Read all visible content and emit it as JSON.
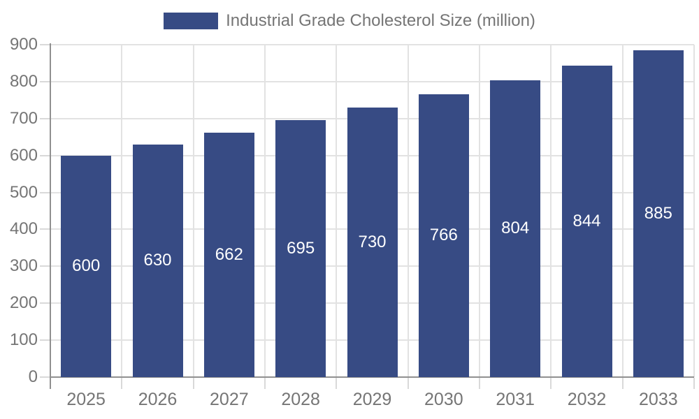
{
  "chart_data": {
    "type": "bar",
    "title": "",
    "categories": [
      "2025",
      "2026",
      "2027",
      "2028",
      "2029",
      "2030",
      "2031",
      "2032",
      "2033"
    ],
    "series": [
      {
        "name": "Industrial Grade Cholesterol Size (million)",
        "values": [
          600,
          630,
          662,
          695,
          730,
          766,
          804,
          844,
          885
        ]
      }
    ],
    "value_labels": [
      600,
      630,
      662,
      695,
      730,
      766,
      804,
      844,
      885
    ],
    "y_tick_labels": [
      "0",
      "100",
      "200",
      "300",
      "400",
      "500",
      "600",
      "700",
      "800",
      "900"
    ],
    "xlabel": "",
    "ylabel": "",
    "ylim": [
      0,
      900
    ],
    "ytick_step": 100,
    "grid": "on",
    "legend_position": "top-center",
    "value_label_position": "inside-middle",
    "colors": {
      "bar": "#374B84",
      "grid": "#E2E2E2",
      "axis_line": "#909090",
      "tick": "#D9D9D9",
      "axis_text": "#757575",
      "value_text": "#FFFFFF",
      "background": "#FFFFFF"
    }
  }
}
